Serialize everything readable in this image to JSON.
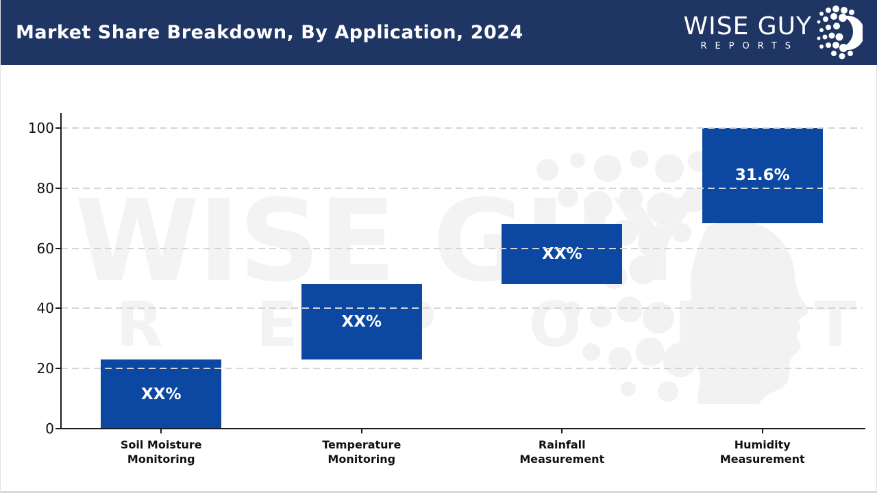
{
  "header": {
    "title": "Market Share Breakdown, By Application, 2024",
    "bg_color": "#1f3564",
    "logo": {
      "line1": "WISE GUY",
      "line2": "REPORTS"
    }
  },
  "watermark": {
    "line1": "WISE GUY",
    "line2": "R E P O R T S"
  },
  "chart_data": {
    "type": "bar",
    "variant": "floating-waterfall",
    "title": "Market Share Breakdown, By Application, 2024",
    "categories": [
      "Soil Moisture Monitoring",
      "Temperature Monitoring",
      "Rainfall Measurement",
      "Humidity Measurement"
    ],
    "category_lines": [
      [
        "Soil Moisture",
        "Monitoring"
      ],
      [
        "Temperature",
        "Monitoring"
      ],
      [
        "Rainfall",
        "Measurement"
      ],
      [
        "Humidity",
        "Measurement"
      ]
    ],
    "segments": [
      {
        "start": 0,
        "end": 23,
        "label": "XX%"
      },
      {
        "start": 23,
        "end": 48,
        "label": "XX%"
      },
      {
        "start": 48,
        "end": 68,
        "label": "XX%"
      },
      {
        "start": 68.4,
        "end": 100,
        "label": "31.6%"
      }
    ],
    "yticks": [
      0,
      20,
      40,
      60,
      80,
      100
    ],
    "ylim": [
      0,
      100
    ],
    "grid": "horizontal-dashed",
    "legend": "none",
    "bar_color": "#0c47a1",
    "bar_label_color": "#ffffff"
  }
}
